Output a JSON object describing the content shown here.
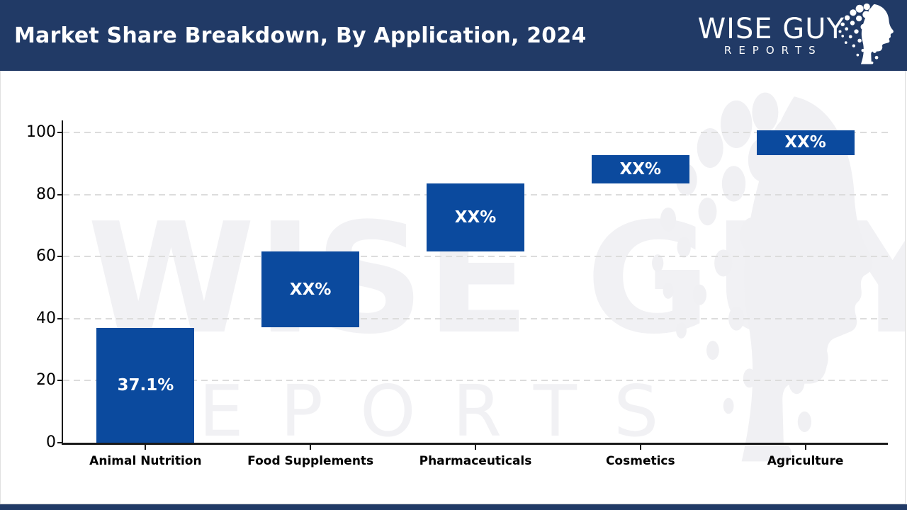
{
  "header": {
    "title": "Market Share Breakdown, By Application, 2024",
    "logo": {
      "line1": "WISE GUY",
      "line2": "REPORTS"
    }
  },
  "watermark": {
    "line1": "WISE GUY",
    "line2": "REPORTS"
  },
  "chart_data": {
    "type": "bar",
    "subtype": "waterfall",
    "title": "Market Share Breakdown, By Application, 2024",
    "categories": [
      "Animal Nutrition",
      "Food Supplements",
      "Pharmaceuticals",
      "Cosmetics",
      "Agriculture"
    ],
    "segments": [
      {
        "category": "Animal Nutrition",
        "start": 0,
        "end": 37.1,
        "label": "37.1%"
      },
      {
        "category": "Food Supplements",
        "start": 37.1,
        "end": 61.6,
        "label": "XX%"
      },
      {
        "category": "Pharmaceuticals",
        "start": 61.6,
        "end": 83.6,
        "label": "XX%"
      },
      {
        "category": "Cosmetics",
        "start": 83.6,
        "end": 92.7,
        "label": "XX%"
      },
      {
        "category": "Agriculture",
        "start": 92.7,
        "end": 100.7,
        "label": "XX%"
      }
    ],
    "yticks": [
      0,
      20,
      40,
      60,
      80,
      100
    ],
    "ylim": [
      0,
      105
    ],
    "xlabel": "",
    "ylabel": "",
    "grid": "horizontal-dashed",
    "legend": "none",
    "bar_color": "#0b4a9e",
    "bar_label_color": "#ffffff"
  },
  "colors": {
    "header_bg": "#213a66",
    "footer_bg": "#213a66",
    "bar": "#0b4a9e",
    "axis": "#1a1a1a",
    "grid": "#dcdcdc",
    "watermark": "#f1f1f4",
    "title_text": "#ffffff"
  }
}
